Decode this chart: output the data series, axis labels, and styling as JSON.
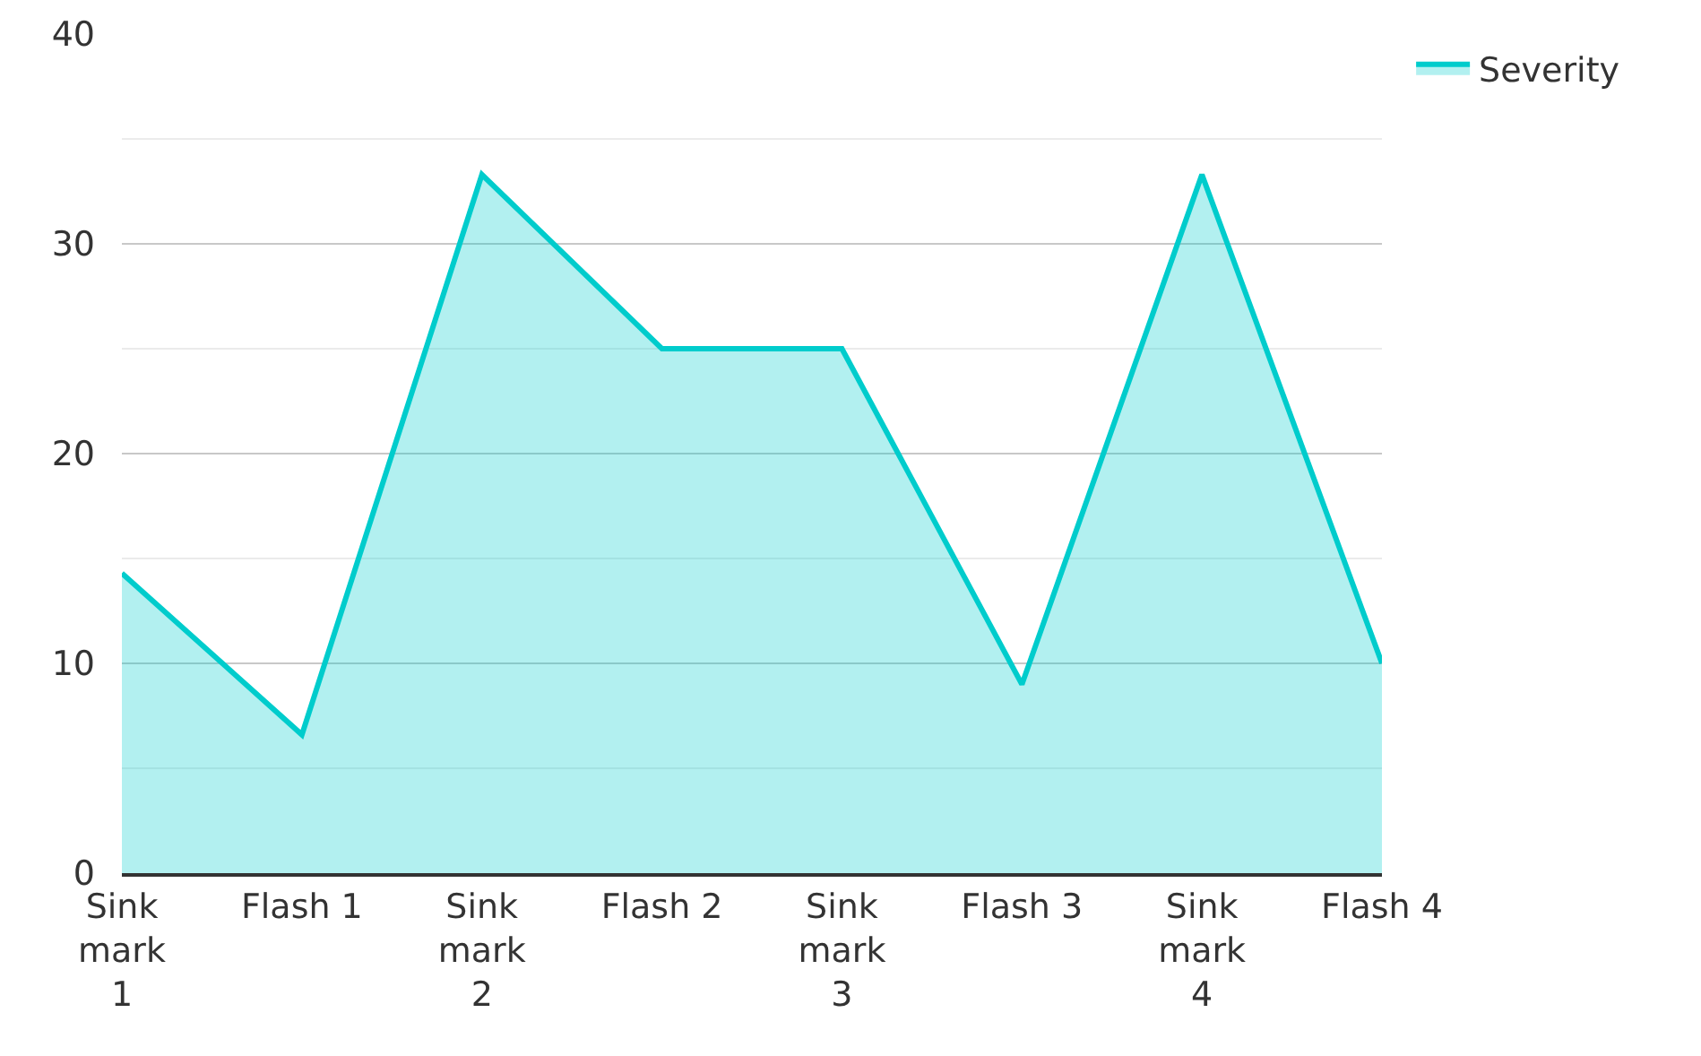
{
  "chart_data": {
    "type": "area",
    "categories": [
      "Sink mark 1",
      "Flash 1",
      "Sink mark 2",
      "Flash 2",
      "Sink mark 3",
      "Flash 3",
      "Sink mark 4",
      "Flash 4"
    ],
    "series": [
      {
        "name": "Severity",
        "color": "#00cccc",
        "values": [
          14.3,
          6.6,
          33.3,
          25,
          25,
          9,
          33.3,
          10
        ]
      }
    ],
    "ylim": [
      0,
      40
    ],
    "yticks": [
      0,
      10,
      20,
      30,
      40
    ],
    "grid": "y",
    "legend": "top right",
    "marker": "none",
    "line_style": "solid"
  }
}
